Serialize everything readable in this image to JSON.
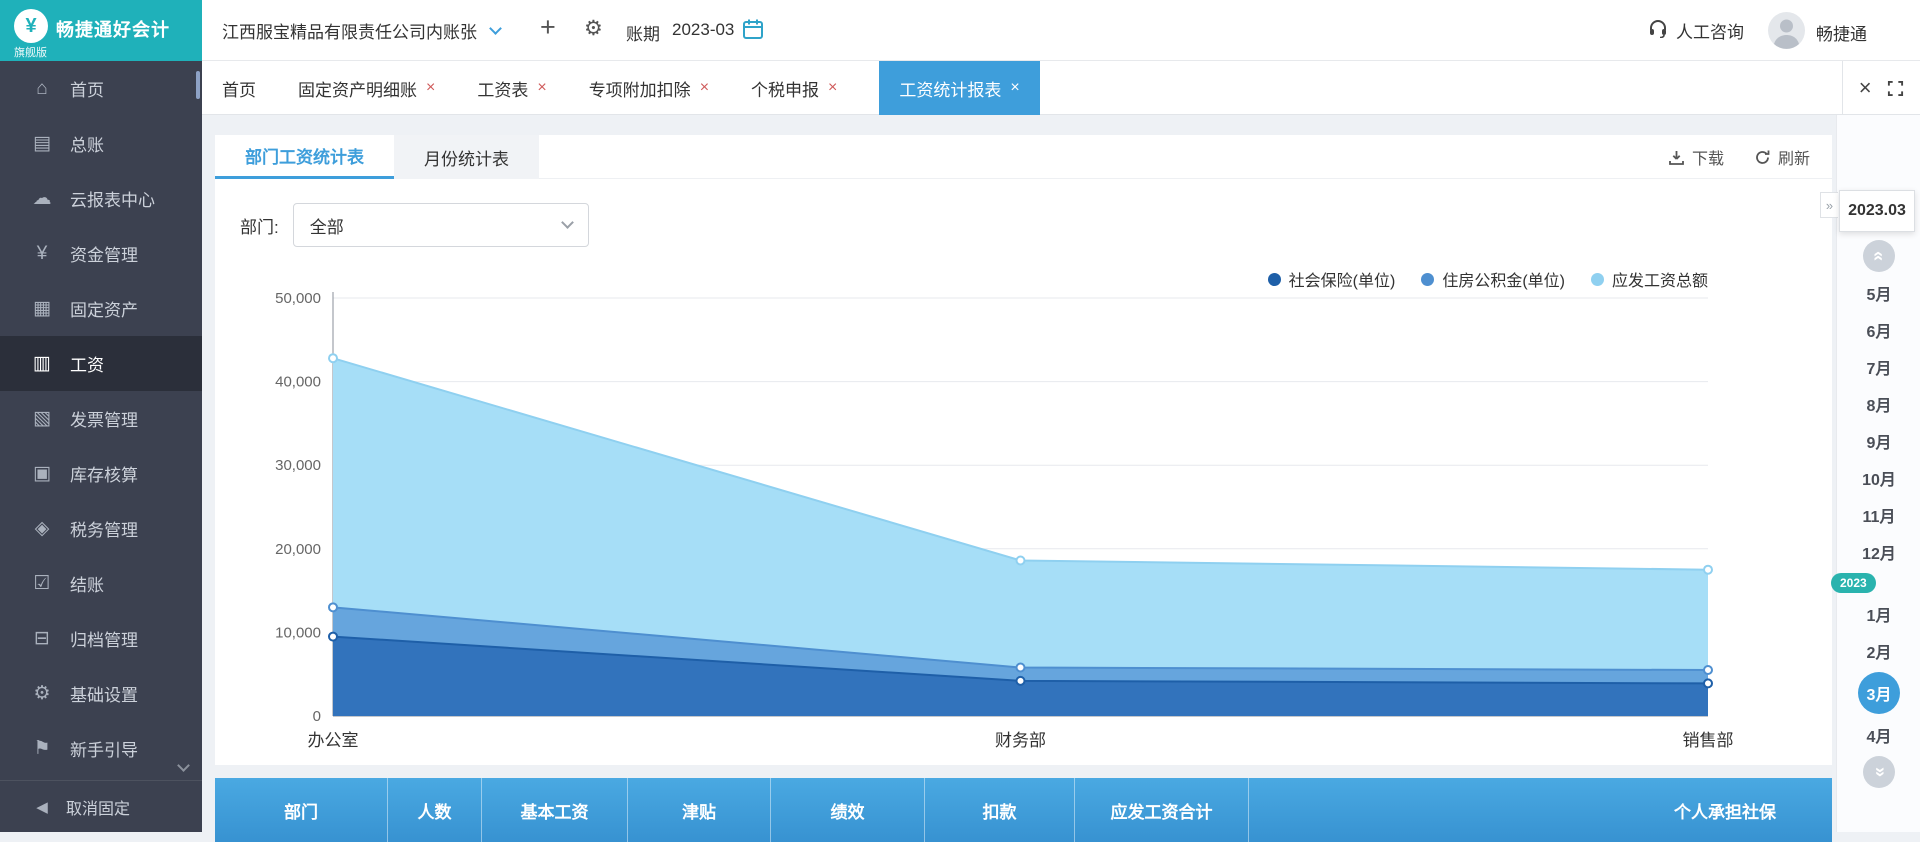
{
  "colors": {
    "accent_blue": "#3e9edb",
    "brand_teal": "#1fb1ba",
    "sidebar_bg": "#3c4150",
    "sidebar_active_bg": "#2b2f3a",
    "table_header_blue": "#3f9bd9",
    "badge_teal": "#2ab3ae",
    "tab_close_red": "#cf5a5a"
  },
  "icons": {
    "logo_currency": "¥",
    "plus": "+",
    "gear": "⚙",
    "close": "×",
    "collapse": "»",
    "double_chevron": "«",
    "unpin": "◀"
  },
  "header": {
    "logo_title": "畅捷通好会计",
    "logo_subtitle": "旗舰版",
    "company": "江西服宝精品有限责任公司内账张",
    "period_label": "账期",
    "period_value": "2023-03",
    "support_label": "人工咨询",
    "username": "畅捷通"
  },
  "sidebar": {
    "items": [
      {
        "id": "home",
        "label": "首页",
        "icon": "home-icon",
        "glyph": "⌂",
        "active": false
      },
      {
        "id": "general-ledger",
        "label": "总账",
        "icon": "ledger-icon",
        "glyph": "▤",
        "active": false
      },
      {
        "id": "cloud-reports",
        "label": "云报表中心",
        "icon": "cloud-report-icon",
        "glyph": "☁",
        "active": false
      },
      {
        "id": "funds",
        "label": "资金管理",
        "icon": "funds-icon",
        "glyph": "¥",
        "active": false
      },
      {
        "id": "fixed-assets",
        "label": "固定资产",
        "icon": "building-icon",
        "glyph": "▦",
        "active": false
      },
      {
        "id": "salary",
        "label": "工资",
        "icon": "salary-card-icon",
        "glyph": "▥",
        "active": true
      },
      {
        "id": "invoice",
        "label": "发票管理",
        "icon": "invoice-icon",
        "glyph": "▧",
        "active": false
      },
      {
        "id": "inventory",
        "label": "库存核算",
        "icon": "inventory-icon",
        "glyph": "▣",
        "active": false
      },
      {
        "id": "tax",
        "label": "税务管理",
        "icon": "tax-icon",
        "glyph": "◈",
        "active": false
      },
      {
        "id": "closing",
        "label": "结账",
        "icon": "checkbox-icon",
        "glyph": "☑",
        "active": false
      },
      {
        "id": "archive",
        "label": "归档管理",
        "icon": "archive-icon",
        "glyph": "⊟",
        "active": false
      },
      {
        "id": "settings",
        "label": "基础设置",
        "icon": "gear-icon",
        "glyph": "⚙",
        "active": false
      },
      {
        "id": "guide",
        "label": "新手引导",
        "icon": "flag-icon",
        "glyph": "⚑",
        "active": false
      }
    ],
    "unpin_label": "取消固定"
  },
  "tabs": [
    {
      "id": "home",
      "label": "首页",
      "closable": false,
      "active": false
    },
    {
      "id": "fixed-asset-detail",
      "label": "固定资产明细账",
      "closable": true,
      "active": false
    },
    {
      "id": "salary-sheet",
      "label": "工资表",
      "closable": true,
      "active": false
    },
    {
      "id": "special-deduction",
      "label": "专项附加扣除",
      "closable": true,
      "active": false
    },
    {
      "id": "personal-tax",
      "label": "个税申报",
      "closable": true,
      "active": false
    },
    {
      "id": "salary-report",
      "label": "工资统计报表",
      "closable": true,
      "active": true
    }
  ],
  "panel": {
    "subtabs": [
      {
        "id": "department-stats",
        "label": "部门工资统计表",
        "active": true
      },
      {
        "id": "month-stats",
        "label": "月份统计表",
        "active": false
      }
    ],
    "download_label": "下载",
    "refresh_label": "刷新",
    "filter_label": "部门:",
    "filter_value": "全部"
  },
  "chart_data": {
    "type": "area",
    "categories": [
      "办公室",
      "财务部",
      "销售部"
    ],
    "series": [
      {
        "name": "社会保险(单位)",
        "color": "#1e5fa8",
        "fill": "#2e6fb8",
        "fill_opacity": 0.92,
        "values": [
          9500,
          4200,
          3900
        ]
      },
      {
        "name": "住房公积金(单位)",
        "color": "#4e8fd0",
        "fill": "#5f9fd9",
        "fill_opacity": 0.9,
        "values": [
          13000,
          5800,
          5500
        ]
      },
      {
        "name": "应发工资总额",
        "color": "#8fd0f0",
        "fill": "#a6def7",
        "fill_opacity": 1,
        "values": [
          42800,
          18600,
          17500
        ]
      }
    ],
    "title": "",
    "xlabel": "",
    "ylabel": "",
    "ylim": [
      0,
      50000
    ],
    "yticks": [
      0,
      10000,
      20000,
      30000,
      40000,
      50000
    ],
    "grid": true,
    "legend_position": "top-right"
  },
  "table": {
    "columns": [
      "部门",
      "人数",
      "基本工资",
      "津贴",
      "绩效",
      "扣款",
      "应发工资合计",
      "个人承担社保"
    ]
  },
  "month_panel": {
    "current": "2023.03",
    "year_badge": "2023",
    "months_top": [
      "5月",
      "6月",
      "7月",
      "8月",
      "9月",
      "10月",
      "11月",
      "12月"
    ],
    "months_bottom": [
      "1月",
      "2月",
      "3月",
      "4月"
    ],
    "selected_month": "3月"
  }
}
